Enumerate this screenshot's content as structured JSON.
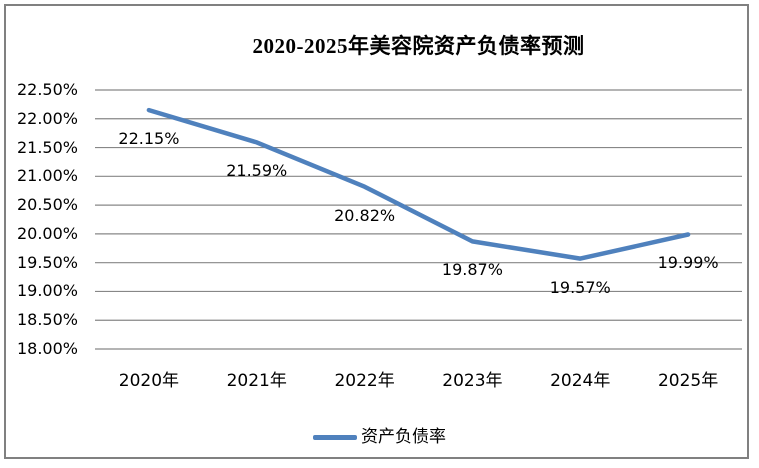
{
  "chart_data": {
    "type": "line",
    "title": "2020-2025年美容院资产负债率预测",
    "categories": [
      "2020年",
      "2021年",
      "2022年",
      "2023年",
      "2024年",
      "2025年"
    ],
    "series": [
      {
        "name": "资产负债率",
        "values": [
          22.15,
          21.59,
          20.82,
          19.87,
          19.57,
          19.99
        ],
        "color": "#4F81BD"
      }
    ],
    "data_labels": [
      "22.15%",
      "21.59%",
      "20.82%",
      "19.87%",
      "19.57%",
      "19.99%"
    ],
    "y_tick_labels": [
      "22.50%",
      "22.00%",
      "21.50%",
      "21.00%",
      "20.50%",
      "20.00%",
      "19.50%",
      "19.00%",
      "18.50%",
      "18.00%"
    ],
    "ylim": [
      18.0,
      22.5
    ],
    "y_tick_step": 0.5,
    "xlabel": "",
    "ylabel": "",
    "grid": true,
    "legend_position": "bottom",
    "gridline_color": "#878787",
    "frame_border_color": "#808080",
    "background_color": "#FFFFFF"
  }
}
